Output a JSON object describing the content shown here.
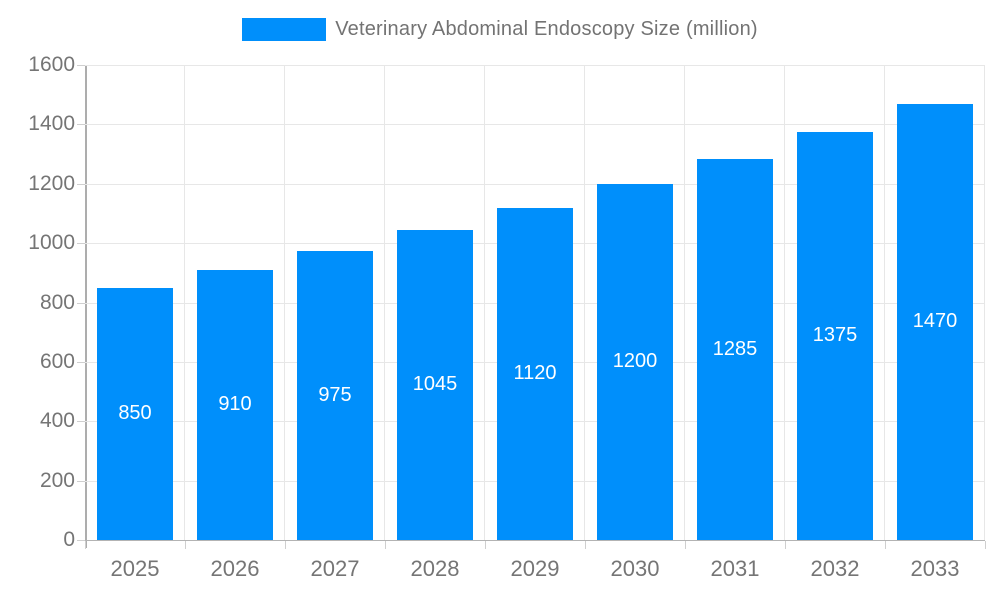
{
  "chart_data": {
    "type": "bar",
    "title": "Veterinary Abdominal Endoscopy Size (million)",
    "legend_label": "Veterinary Abdominal Endoscopy Size (million)",
    "legend_position": "top",
    "categories": [
      "2025",
      "2026",
      "2027",
      "2028",
      "2029",
      "2030",
      "2031",
      "2032",
      "2033"
    ],
    "series": [
      {
        "name": "Veterinary Abdominal Endoscopy Size (million)",
        "values": [
          850,
          910,
          975,
          1045,
          1120,
          1200,
          1285,
          1375,
          1470
        ]
      }
    ],
    "data_labels": [
      "850",
      "910",
      "975",
      "1045",
      "1120",
      "1200",
      "1285",
      "1375",
      "1470"
    ],
    "xlabel": "",
    "ylabel": "",
    "ylim": [
      0,
      1600
    ],
    "ytick_step": 200,
    "yticks": [
      "0",
      "200",
      "400",
      "600",
      "800",
      "1000",
      "1200",
      "1400",
      "1600"
    ],
    "grid": true,
    "colors": {
      "bar": "#008FFB",
      "bar_label_text": "#ffffff",
      "axis_line": "#b0b0b0",
      "grid_line": "#e7e7e7",
      "tick_text": "#757575",
      "legend_text": "#737373",
      "background": "#ffffff"
    }
  }
}
